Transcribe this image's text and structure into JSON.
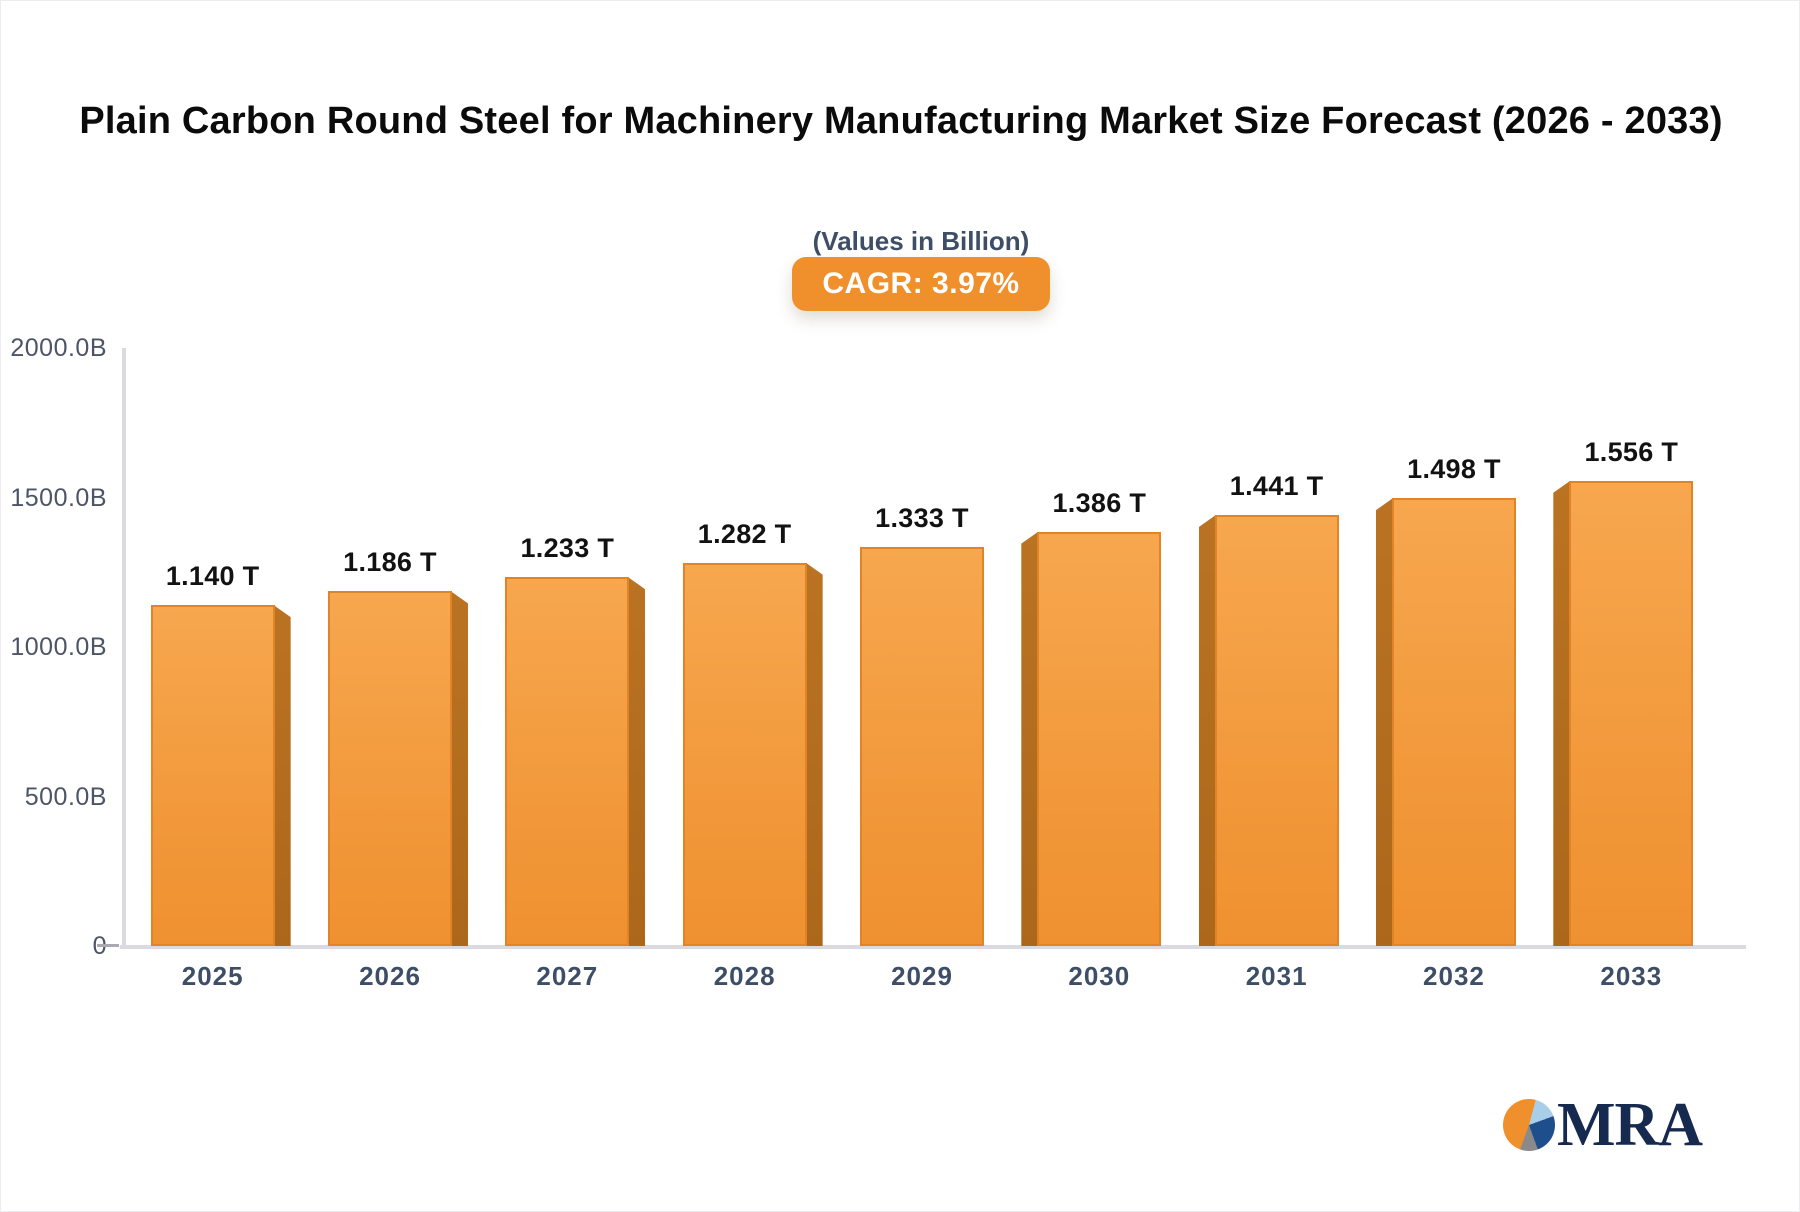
{
  "header": {
    "title": "Plain Carbon Round Steel for Machinery Manufacturing Market Size Forecast (2026 - 2033)",
    "subtitle": "(Values in Billion)",
    "cagr_badge": "CAGR: 3.97%"
  },
  "branding": {
    "logo_text": "MRA"
  },
  "colors": {
    "accent": "#F0902C",
    "title_color": "#0B0B0B",
    "slate": "#3D4E66",
    "tick_color": "#4C5566",
    "axis_gray": "#DADAE0",
    "bar_top": "#F7A74F",
    "bar_mid": "#F29A3D",
    "bar_bottom": "#EF9130",
    "bar_border": "#E08427",
    "bar_side": "#B26D1E",
    "logo_navy": "#16294E",
    "logo_lightblue": "#A9CEE8",
    "logo_blue": "#1F4E8C",
    "logo_gray": "#8A8A8A"
  },
  "chart_data": {
    "type": "bar",
    "title": "Plain Carbon Round Steel for Machinery Manufacturing Market Size Forecast (2026 - 2033)",
    "subtitle": "(Values in Billion)",
    "cagr_percent": 3.97,
    "unit": "Billion",
    "categories": [
      "2025",
      "2026",
      "2027",
      "2028",
      "2029",
      "2030",
      "2031",
      "2032",
      "2033"
    ],
    "values_billions": [
      1140,
      1186,
      1233,
      1282,
      1333,
      1386,
      1441,
      1498,
      1556
    ],
    "value_labels": [
      "1.140 T",
      "1.186 T",
      "1.233 T",
      "1.282 T",
      "1.333 T",
      "1.386 T",
      "1.441 T",
      "1.498 T",
      "1.556 T"
    ],
    "y_axis": {
      "range": [
        0,
        2000
      ],
      "ticks": [
        {
          "label": "2000.0B",
          "value": 2000
        },
        {
          "label": "1500.0B",
          "value": 1500
        },
        {
          "label": "1000.0B",
          "value": 1000
        },
        {
          "label": "500.0B",
          "value": 500
        },
        {
          "label": "0",
          "value": 0
        }
      ]
    },
    "grid": false,
    "legend": "none",
    "bar_style": "3d-extruded"
  }
}
